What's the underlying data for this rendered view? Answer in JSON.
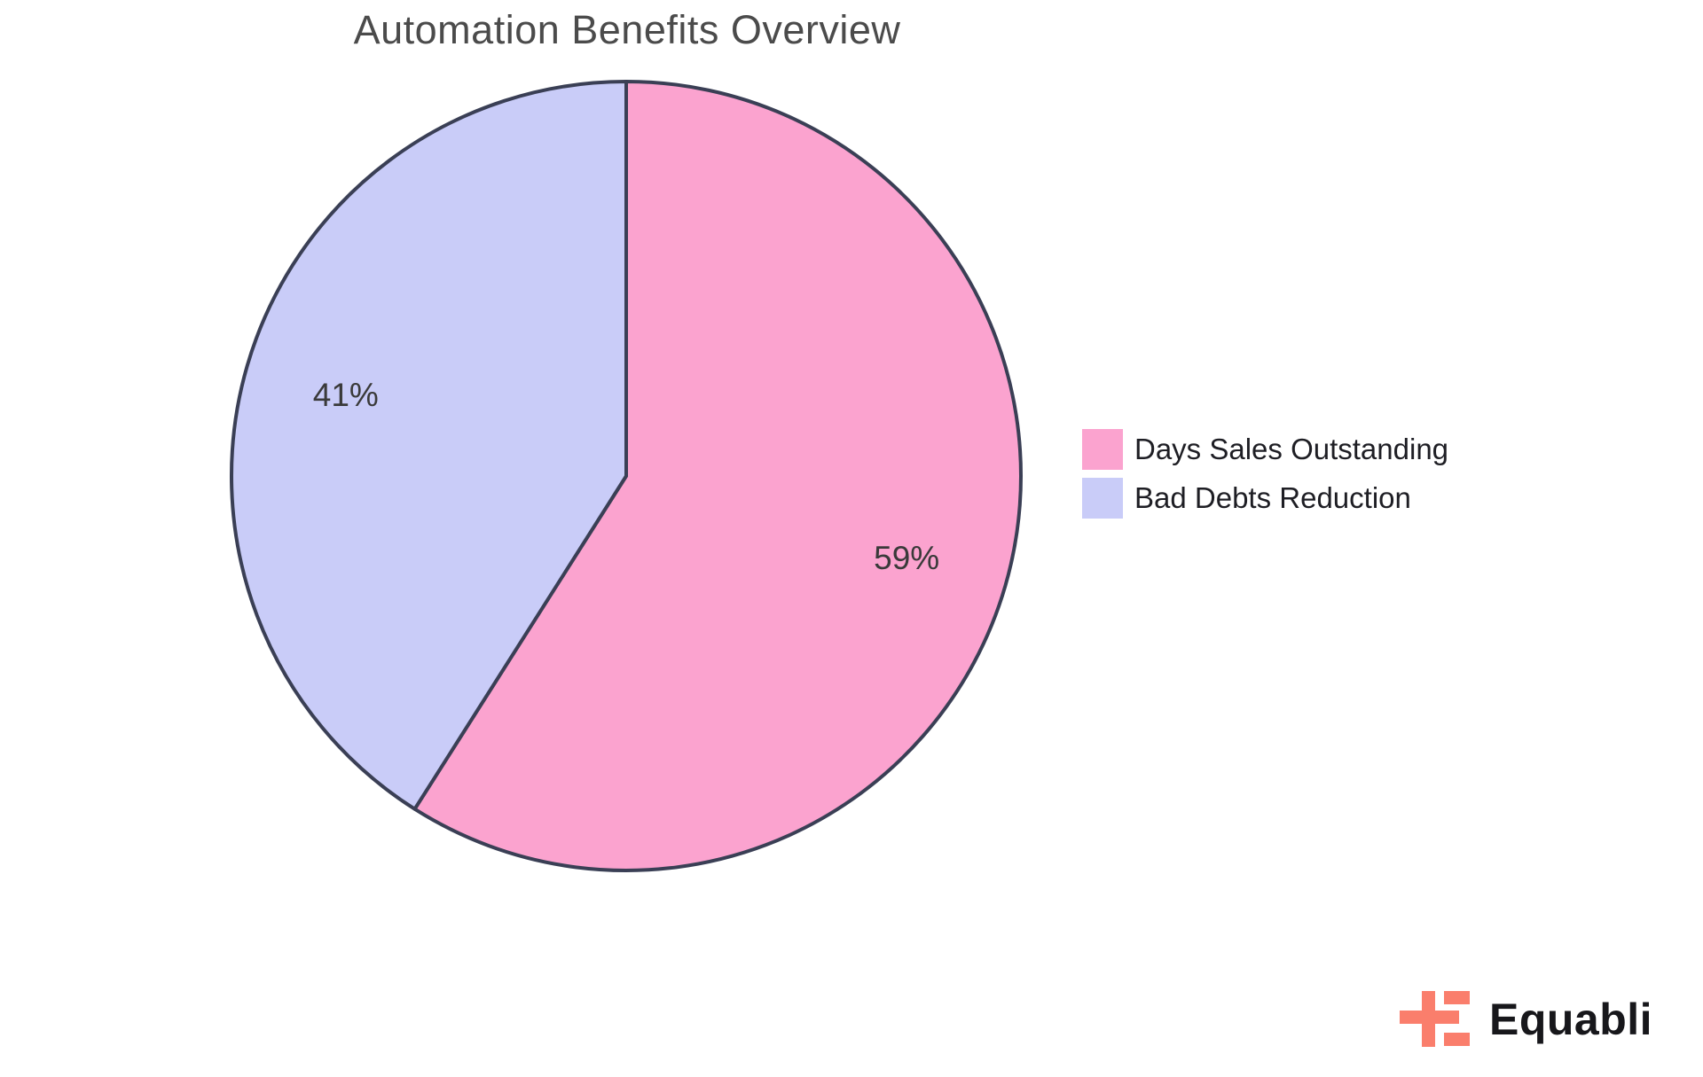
{
  "chart_data": {
    "type": "pie",
    "title": "Automation Benefits Overview",
    "legend_position": "right",
    "direction": "clockwise",
    "start_angle_deg": 0,
    "stroke_color": "#3a3f55",
    "slices": [
      {
        "label": "Days Sales Outstanding",
        "value": 59,
        "pct_label": "59%",
        "color": "#fba3cf"
      },
      {
        "label": "Bad Debts Reduction",
        "value": 41,
        "pct_label": "41%",
        "color": "#c9ccf8"
      }
    ]
  },
  "branding": {
    "logo_text": "Equabli",
    "logo_color": "#fa7e6c"
  }
}
